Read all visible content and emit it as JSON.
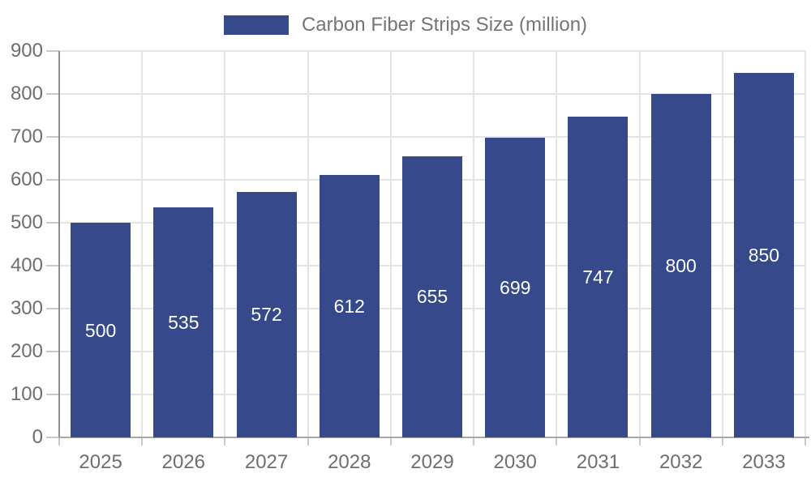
{
  "chart_data": {
    "type": "bar",
    "title": "",
    "categories": [
      "2025",
      "2026",
      "2027",
      "2028",
      "2029",
      "2030",
      "2031",
      "2032",
      "2033"
    ],
    "series": [
      {
        "name": "Carbon Fiber Strips Size (million)",
        "values": [
          500,
          535,
          572,
          612,
          655,
          699,
          747,
          800,
          850
        ]
      }
    ],
    "xlabel": "",
    "ylabel": "",
    "ylim": [
      0,
      900
    ],
    "ytick_step": 100,
    "ytick_labels": [
      "0",
      "100",
      "200",
      "300",
      "400",
      "500",
      "600",
      "700",
      "800",
      "900"
    ],
    "grid": true,
    "legend_position": "top-center",
    "bar_labels_inside": true,
    "colors": {
      "bar": "#36498B",
      "bar_label": "#FFFFFF",
      "axis_text": "#6E6E6E",
      "legend_text": "#757575",
      "grid": "#E4E4E4",
      "axis_line_y": "#8F8F8F",
      "axis_line_x": "#A8A8A8",
      "tick": "#C9C9C9"
    }
  }
}
